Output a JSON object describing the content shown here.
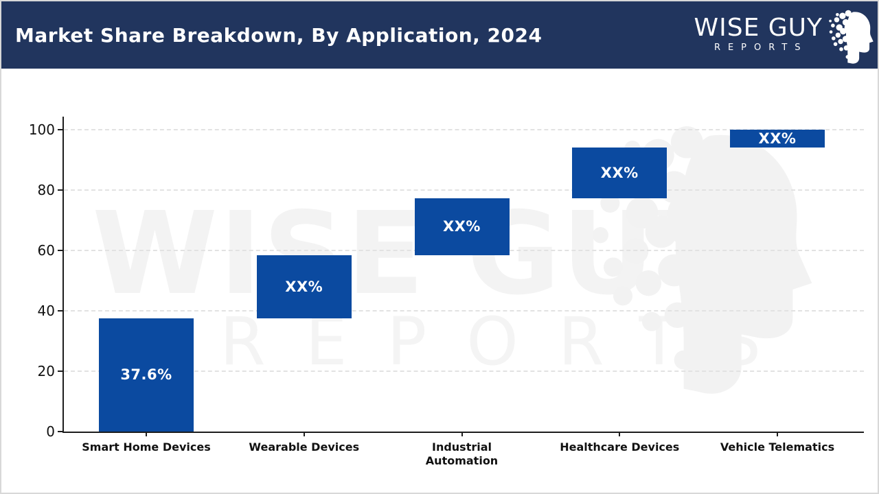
{
  "header": {
    "title": "Market Share Breakdown, By Application, 2024",
    "logo": {
      "line1": "WISE GUY",
      "line2": "REPORTS"
    }
  },
  "watermark": {
    "line1": "WISE GUY",
    "line2": "REPORTS"
  },
  "colors": {
    "header_bg": "#21355e",
    "bar": "#0b4aa0",
    "axis": "#1c1c1c",
    "gridline": "#e2e2e2",
    "title_text": "#ffffff",
    "bar_label_text": "#ffffff",
    "watermark": "#f3f3f3"
  },
  "chart_data": {
    "type": "bar",
    "subtype": "waterfall",
    "title": "Market Share Breakdown, By Application, 2024",
    "categories": [
      "Smart Home Devices",
      "Wearable Devices",
      "Industrial\nAutomation",
      "Healthcare Devices",
      "Vehicle Telematics"
    ],
    "bars": [
      {
        "category": "Smart Home Devices",
        "start": 0,
        "end": 37.6,
        "segment_value": 37.6,
        "label": "37.6%"
      },
      {
        "category": "Wearable Devices",
        "start": 37.6,
        "end": 58.4,
        "segment_value": 20.8,
        "label": "XX%"
      },
      {
        "category": "Industrial Automation",
        "start": 58.4,
        "end": 77.3,
        "segment_value": 18.9,
        "label": "XX%"
      },
      {
        "category": "Healthcare Devices",
        "start": 77.3,
        "end": 94.1,
        "segment_value": 16.8,
        "label": "XX%"
      },
      {
        "category": "Vehicle Telematics",
        "start": 94.1,
        "end": 100.0,
        "segment_value": 5.9,
        "label": "XX%"
      }
    ],
    "y_ticks": [
      0,
      20,
      40,
      60,
      80,
      100
    ],
    "ylim": [
      0,
      105
    ],
    "xlabel": "",
    "ylabel": "",
    "grid": "horizontal-dashed",
    "legend": "none"
  }
}
